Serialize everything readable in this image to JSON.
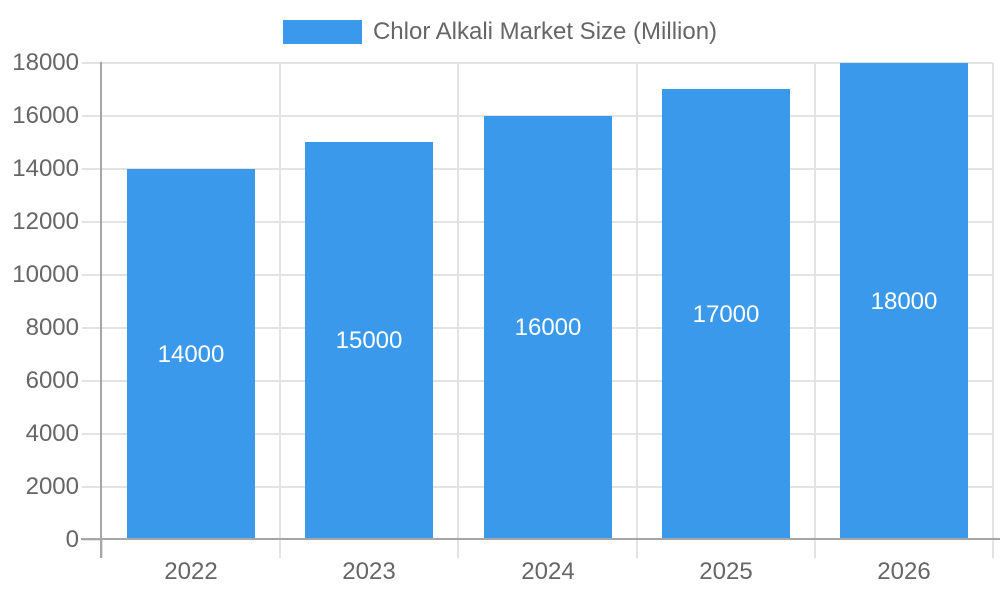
{
  "chart_data": {
    "type": "bar",
    "title": "Chlor Alkali Market Size (Million)",
    "legend": {
      "position": "top",
      "entries": [
        {
          "label": "Chlor Alkali Market Size (Million)",
          "color": "#3b99ec"
        }
      ]
    },
    "categories": [
      "2022",
      "2023",
      "2024",
      "2025",
      "2026"
    ],
    "values": [
      14000,
      15000,
      16000,
      17000,
      18000
    ],
    "value_labels": [
      "14000",
      "15000",
      "16000",
      "17000",
      "18000"
    ],
    "xlabel": "",
    "ylabel": "",
    "ylim": [
      0,
      18000
    ],
    "y_tick_step": 2000,
    "y_tick_labels": [
      "0",
      "2000",
      "4000",
      "6000",
      "8000",
      "10000",
      "12000",
      "14000",
      "16000",
      "18000"
    ],
    "grid": "both",
    "style": {
      "bar_color": "#3b99ec",
      "bar_label_color": "#ffffff",
      "axis_line_color": "#a6a6a6",
      "grid_color": "#e3e3e3",
      "tick_color": "#e3e3e3",
      "text_color": "#666666",
      "background": "#ffffff"
    }
  }
}
